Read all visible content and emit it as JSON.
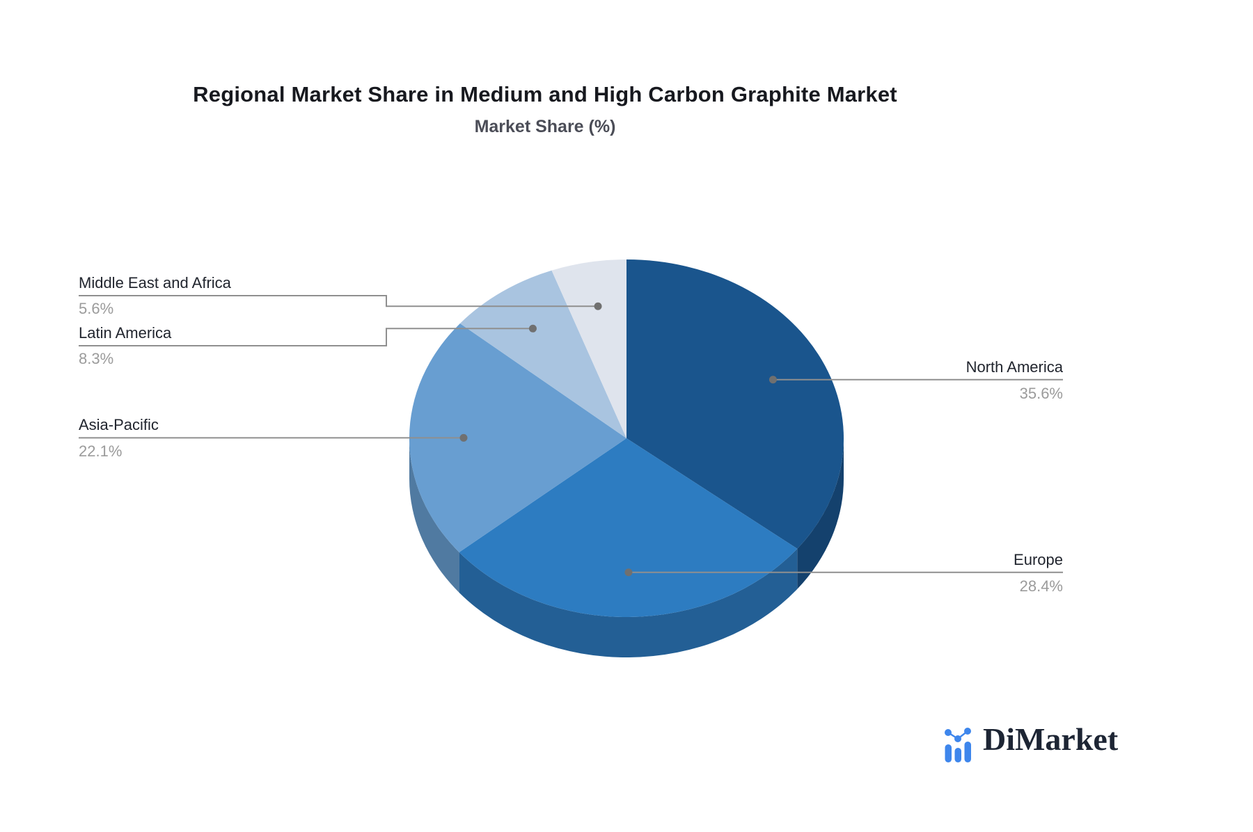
{
  "title": "Regional Market Share in Medium and High Carbon Graphite Market",
  "subtitle": "Market Share (%)",
  "chart_data": {
    "type": "pie",
    "style": "3d",
    "start_angle_deg": 0,
    "direction": "clockwise",
    "labels": [
      "North America",
      "Europe",
      "Asia-Pacific",
      "Latin America",
      "Middle East and Africa"
    ],
    "values": [
      35.6,
      28.4,
      22.1,
      8.3,
      5.6
    ],
    "display_values": [
      "35.6%",
      "28.4%",
      "22.1%",
      "8.3%",
      "5.6%"
    ],
    "unit": "%",
    "colors": [
      "#1A558D",
      "#2D7CC1",
      "#689ED1",
      "#A9C4E0",
      "#DFE4ED"
    ],
    "leader_line_color": "#8f8f8f",
    "label_text_color": "#21252e",
    "value_text_color": "#9b9b9b",
    "legend_position": "callout-labels"
  },
  "logo": {
    "text": "DiMarket",
    "icon": "bar-line-chart-icon",
    "icon_color": "#3E86EC",
    "text_color": "#1d2534"
  }
}
